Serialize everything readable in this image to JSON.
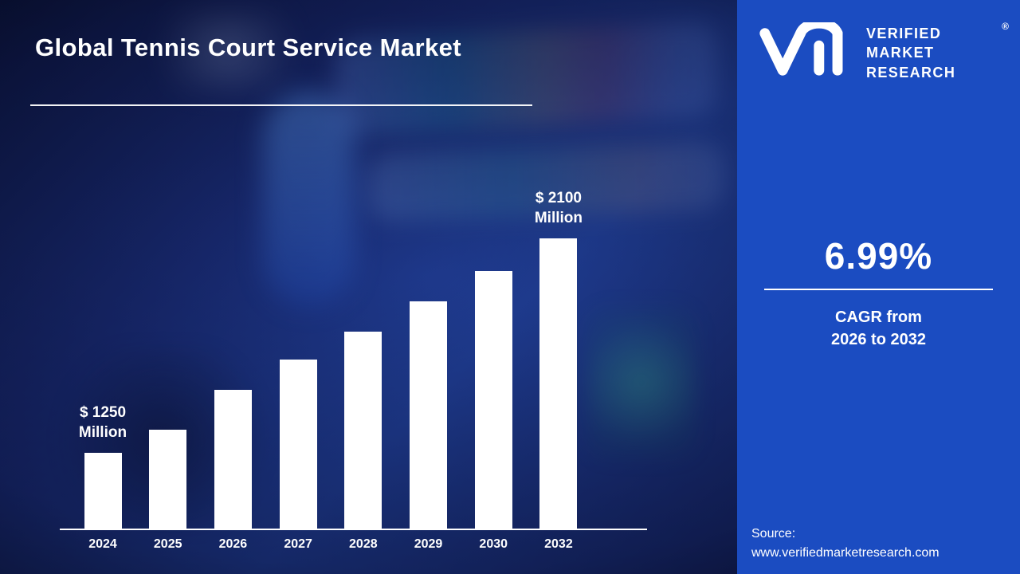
{
  "title": "Global Tennis Court Service Market",
  "brand": {
    "name_lines": [
      "VERIFIED",
      "MARKET",
      "RESEARCH"
    ],
    "registered_mark": "®"
  },
  "stat": {
    "value": "6.99%",
    "caption_line1": "CAGR from",
    "caption_line2": "2026 to 2032"
  },
  "source": {
    "label": "Source:",
    "url": "www.verifiedmarketresearch.com"
  },
  "colors": {
    "panel": "#1b4cc1",
    "bar": "#ffffff",
    "background_dark": "#0c1440",
    "background_mid": "#1e3c92",
    "text": "#ffffff"
  },
  "chart_data": {
    "type": "bar",
    "title": "Global Tennis Court Service Market",
    "categories": [
      "2024",
      "2025",
      "2026",
      "2027",
      "2028",
      "2029",
      "2030",
      "2032"
    ],
    "values": [
      1250,
      1340,
      1500,
      1620,
      1730,
      1850,
      1970,
      2100
    ],
    "unit": "$ Million",
    "ylim": [
      950,
      2150
    ],
    "bar_color": "#ffffff",
    "grid": false,
    "legend": false,
    "annotations": [
      {
        "index": 0,
        "lines": [
          "$ 1250",
          "Million"
        ]
      },
      {
        "index": 7,
        "lines": [
          "$ 2100",
          "Million"
        ]
      }
    ]
  }
}
